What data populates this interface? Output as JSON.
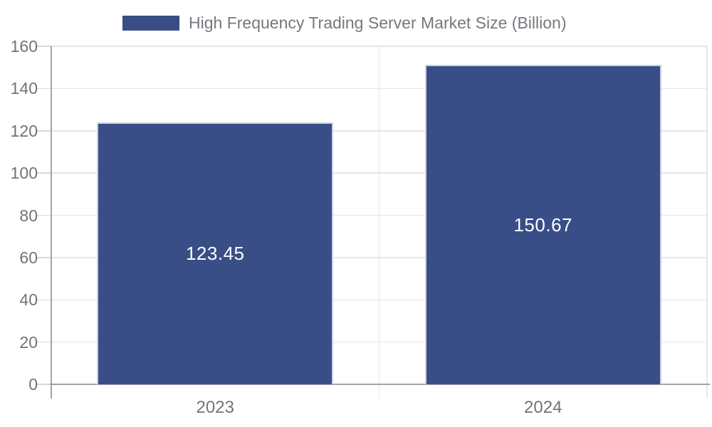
{
  "chart_data": {
    "type": "bar",
    "title": "High Frequency Trading Server Market Size (Billion)",
    "categories": [
      "2023",
      "2024"
    ],
    "values": [
      123.45,
      150.67
    ],
    "bar_labels": [
      "123.45",
      "150.67"
    ],
    "series": [
      {
        "name": "High Frequency Trading Server Market Size (Billion)",
        "values": [
          123.45,
          150.67
        ]
      }
    ],
    "xlabel": "",
    "ylabel": "",
    "ylim": [
      0,
      160
    ],
    "ytick_step": 20,
    "yticks": [
      0,
      20,
      40,
      60,
      80,
      100,
      120,
      140,
      160
    ],
    "grid": true,
    "legend_position": "top-center"
  },
  "colors": {
    "bar_fill": "#394E86",
    "bar_border": "#CDD1E0",
    "grid_line": "#E5E6EB",
    "tick_line": "#D6D8DD",
    "axis_line": "#A3A3A8",
    "tick_label": "#707379",
    "legend_label": "#75787E",
    "bar_label": "#FFFFFF",
    "background": "#FFFFFF"
  }
}
